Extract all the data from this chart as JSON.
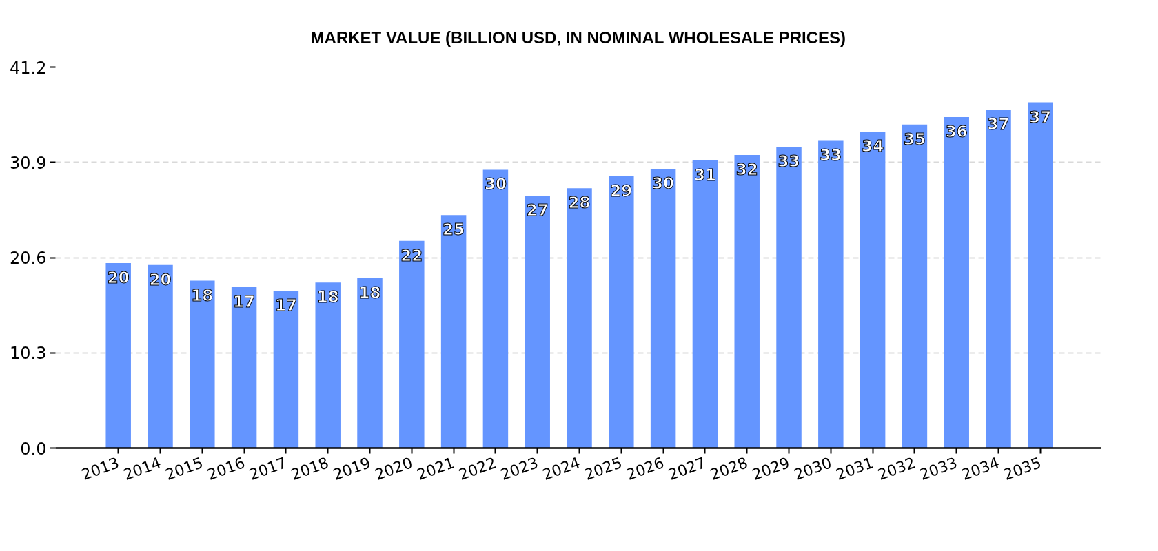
{
  "chart_data": {
    "type": "bar",
    "title": "MARKET VALUE (BILLION USD, IN NOMINAL WHOLESALE PRICES)",
    "categories": [
      "2013",
      "2014",
      "2015",
      "2016",
      "2017",
      "2018",
      "2019",
      "2020",
      "2021",
      "2022",
      "2023",
      "2024",
      "2025",
      "2026",
      "2027",
      "2028",
      "2029",
      "2030",
      "2031",
      "2032",
      "2033",
      "2034",
      "2035"
    ],
    "values": [
      20.0,
      19.8,
      18.1,
      17.4,
      17.0,
      17.9,
      18.4,
      22.4,
      25.2,
      30.1,
      27.3,
      28.1,
      29.4,
      30.2,
      31.1,
      31.7,
      32.6,
      33.3,
      34.2,
      35.0,
      35.8,
      36.6,
      37.4
    ],
    "value_labels": [
      "20",
      "20",
      "18",
      "17",
      "17",
      "18",
      "18",
      "22",
      "25",
      "30",
      "27",
      "28",
      "29",
      "30",
      "31",
      "32",
      "33",
      "33",
      "34",
      "35",
      "36",
      "37",
      "37"
    ],
    "color": "#6495ff",
    "ylim": [
      0,
      41.2
    ],
    "yticks": [
      {
        "value": 0,
        "label": "0.0"
      },
      10.3,
      20.6,
      30.9,
      41.2
    ],
    "grid": "y"
  }
}
